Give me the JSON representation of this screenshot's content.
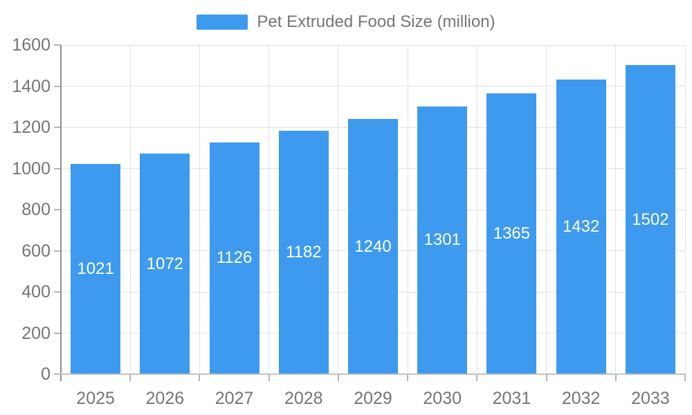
{
  "legend": {
    "label": "Pet Extruded Food Size (million)"
  },
  "colors": {
    "bar": "#3D9AEE",
    "bar_label": "#ffffff",
    "grid": "#e2e2e2",
    "y_axis": "#8f8f8f",
    "x_axis": "#c2c2c2",
    "tick": "#b5b5b5",
    "text": "#757575"
  },
  "chart_data": {
    "type": "bar",
    "title": "Pet Extruded Food Size (million)",
    "series_name": "Pet Extruded Food Size (million)",
    "categories": [
      "2025",
      "2026",
      "2027",
      "2028",
      "2029",
      "2030",
      "2031",
      "2032",
      "2033"
    ],
    "values": [
      1021,
      1072,
      1126,
      1182,
      1240,
      1301,
      1365,
      1432,
      1502
    ],
    "xlabel": "",
    "ylabel": "",
    "ylim": [
      0,
      1600
    ],
    "ytick_step": 200,
    "yticks": [
      0,
      200,
      400,
      600,
      800,
      1000,
      1200,
      1400,
      1600
    ],
    "grid": true,
    "legend_position": "top",
    "bar_value_labels": "inside-middle"
  }
}
